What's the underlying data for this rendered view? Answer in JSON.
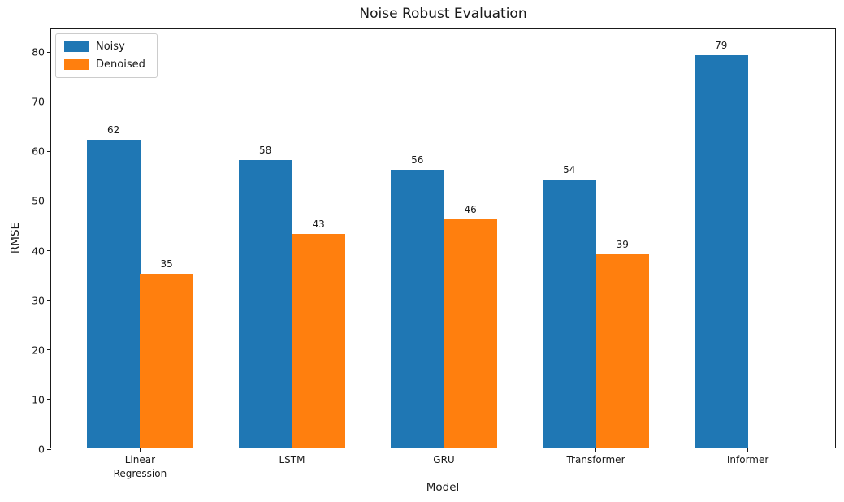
{
  "chart_data": {
    "type": "bar",
    "title": "Noise Robust Evaluation",
    "xlabel": "Model",
    "ylabel": "RMSE",
    "categories": [
      "Linear\nRegression",
      "LSTM",
      "GRU",
      "Transformer",
      "Informer"
    ],
    "series": [
      {
        "name": "Noisy",
        "color": "#1f77b4",
        "values": [
          62,
          58,
          56,
          54,
          79
        ]
      },
      {
        "name": "Denoised",
        "color": "#ff7f0e",
        "values": [
          35,
          43,
          46,
          39,
          null
        ]
      }
    ],
    "yticks": [
      0,
      10,
      20,
      30,
      40,
      50,
      60,
      70,
      80
    ],
    "ylim": [
      0,
      84.6
    ],
    "grid": false,
    "legend_position": "upper left",
    "bar_value_labels": true
  }
}
